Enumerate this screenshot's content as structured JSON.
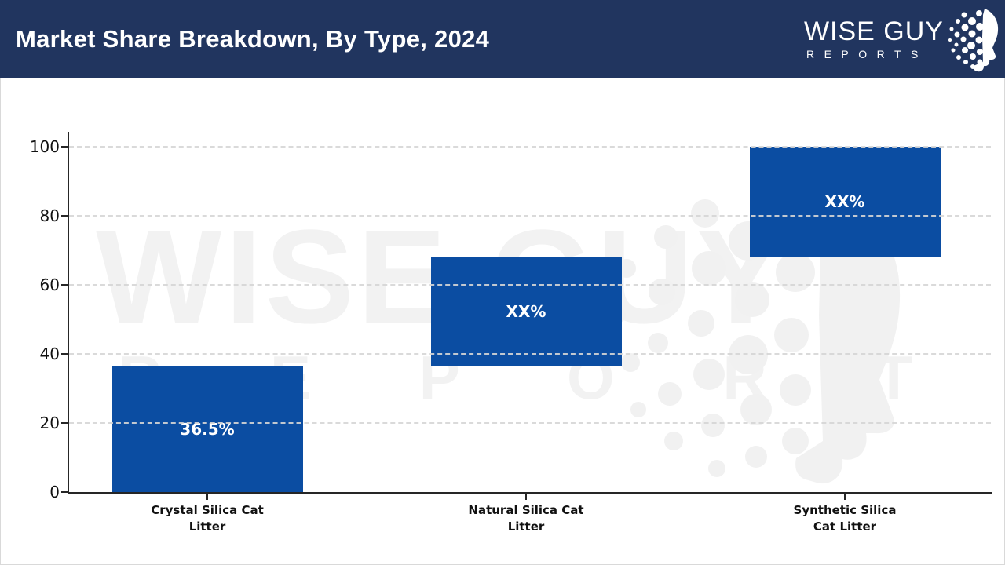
{
  "header": {
    "title": "Market Share Breakdown, By Type, 2024",
    "logo": {
      "line1": "WISE GUY",
      "line2": "REPORTS",
      "face_icon": "dotted-face-profile"
    }
  },
  "watermark": {
    "line1": "WISE GUY",
    "line2": "R E P O R T S",
    "face_icon": "dotted-face-profile"
  },
  "colors": {
    "header_background": "#21355f",
    "bar_blue": "#0b4da2",
    "gridline_gray": "#d6d6d6",
    "axis_dark": "#262626",
    "watermark_gray": "#f2f2f2",
    "text_dark": "#111111",
    "text_white": "#ffffff"
  },
  "chart_data": {
    "type": "bar",
    "subtype": "floating-waterfall",
    "title": "Market Share Breakdown, By Type, 2024",
    "categories": [
      "Crystal Silica Cat Litter",
      "Natural Silica Cat Litter",
      "Synthetic Silica Cat Litter"
    ],
    "bars": [
      {
        "category": "Crystal Silica Cat Litter",
        "category_lines": [
          "Crystal Silica Cat",
          "Litter"
        ],
        "start": 0,
        "end": 36.5,
        "label": "36.5%"
      },
      {
        "category": "Natural Silica Cat Litter",
        "category_lines": [
          "Natural Silica Cat",
          "Litter"
        ],
        "start": 36.5,
        "end": 68,
        "label": "XX%"
      },
      {
        "category": "Synthetic Silica Cat Litter",
        "category_lines": [
          "Synthetic Silica",
          "Cat Litter"
        ],
        "start": 68,
        "end": 100,
        "label": "XX%"
      }
    ],
    "yticks": [
      0,
      20,
      40,
      60,
      80,
      100
    ],
    "ylim": [
      0,
      100
    ],
    "xlabel": "",
    "ylabel": "",
    "grid": "horizontal-dashed",
    "legend": "none",
    "bar_color": "#0b4da2"
  }
}
